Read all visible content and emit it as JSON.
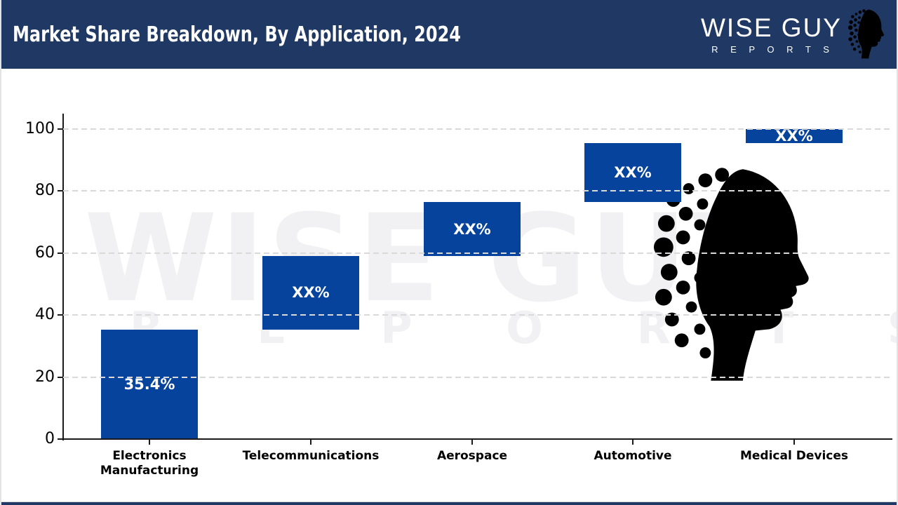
{
  "header": {
    "title": "Market Share Breakdown, By Application, 2024",
    "brand": {
      "name": "WISE GUY",
      "subtitle": "R E P O R T S"
    },
    "bg_color": "#1f3864"
  },
  "watermark": {
    "line1": "WISE GUY",
    "line2": "R E P O R T S"
  },
  "chart_data": {
    "type": "bar",
    "subtype": "waterfall",
    "title": "Market Share Breakdown, By Application, 2024",
    "xlabel": "",
    "ylabel": "",
    "categories": [
      "Electronics Manufacturing",
      "Telecommunications",
      "Aerospace",
      "Automotive",
      "Medical Devices"
    ],
    "segments": [
      {
        "category": "Electronics Manufacturing",
        "start": 0,
        "end": 35.4,
        "label": "35.4%"
      },
      {
        "category": "Telecommunications",
        "start": 35.4,
        "end": 59,
        "label": "XX%"
      },
      {
        "category": "Aerospace",
        "start": 59,
        "end": 76.5,
        "label": "XX%"
      },
      {
        "category": "Automotive",
        "start": 76.5,
        "end": 95.5,
        "label": "XX%"
      },
      {
        "category": "Medical Devices",
        "start": 95.5,
        "end": 100,
        "label": "XX%"
      }
    ],
    "values_increment": [
      35.4,
      23.6,
      17.5,
      19.0,
      4.5
    ],
    "yticks": [
      0,
      20,
      40,
      60,
      80,
      100
    ],
    "ylim": [
      0,
      105
    ],
    "grid": true,
    "grid_style": "dashed",
    "legend": false,
    "bar_color": "#05439c",
    "grid_color": "#d9d9d9",
    "label_color": "#ffffff"
  }
}
